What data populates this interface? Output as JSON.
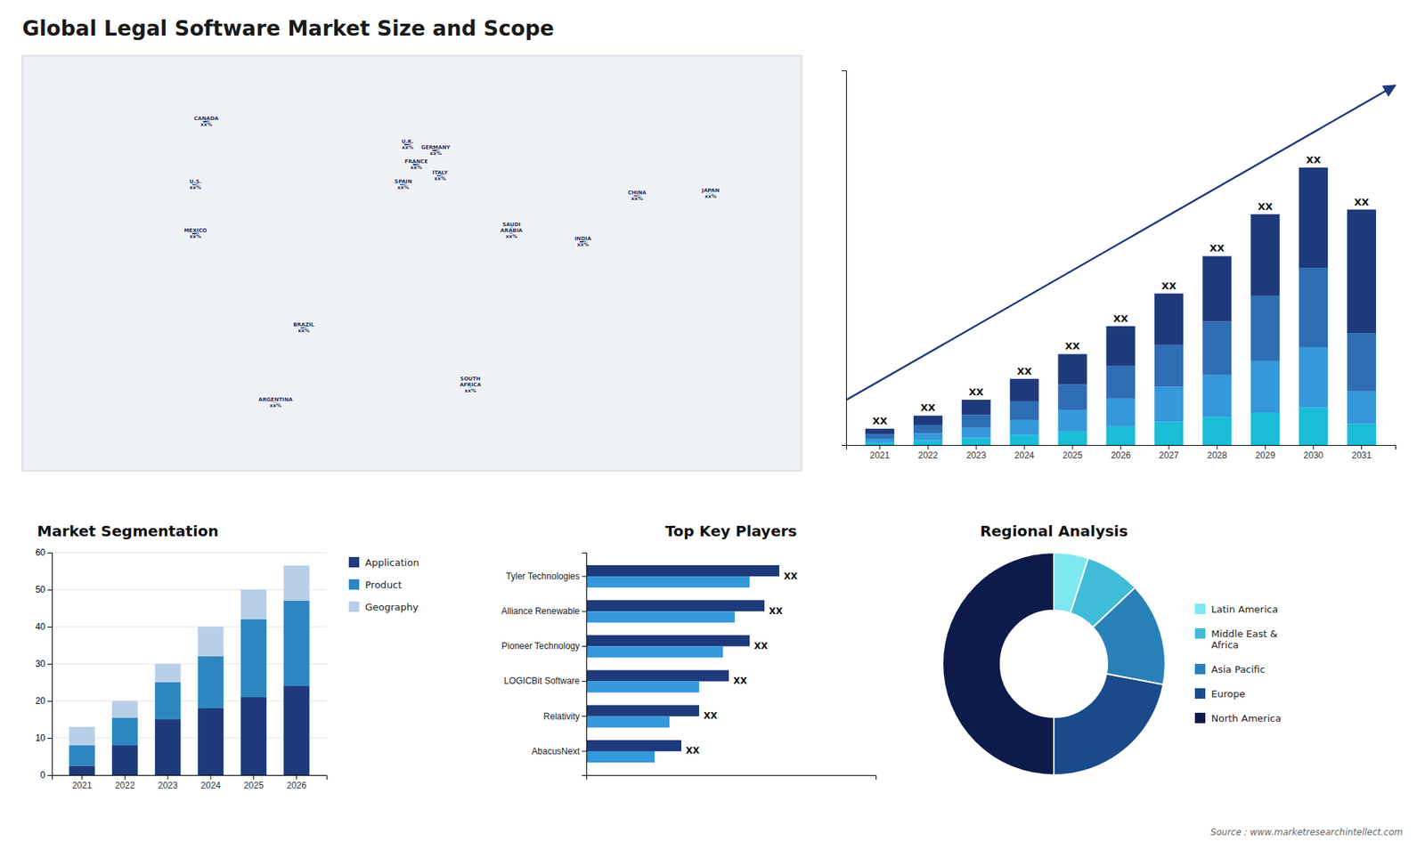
{
  "title": "Global Legal Software Market Size and Scope",
  "annotations": [
    "Source : www.marketresearchintellect.com"
  ],
  "chart_data": [
    {
      "type": "map",
      "categories": [
        "CANADA",
        "U.S.",
        "MEXICO",
        "BRAZIL",
        "ARGENTINA",
        "U.K.",
        "FRANCE",
        "SPAIN",
        "GERMANY",
        "ITALY",
        "SAUDI\nARABIA",
        "SOUTH\nAFRICA",
        "INDIA",
        "CHINA",
        "JAPAN"
      ],
      "x": [
        -95,
        -100,
        -100,
        -50,
        -63,
        -2,
        2,
        -4,
        11,
        13,
        46,
        27,
        79,
        104,
        138
      ],
      "values": [
        62,
        40,
        23,
        -10,
        -36,
        54,
        47,
        40,
        52,
        43,
        24,
        -30,
        20,
        36,
        37
      ],
      "colors": [
        "#1e3a7b",
        "#4a7abf",
        "#1e3a7b",
        "#4a7abf",
        "#b8cfe8",
        "#1e3a7b",
        "#1e3a7b",
        "#4a7abf",
        "#1e3a7b",
        "#4a7abf",
        "#4a7abf",
        "#b8cfe8",
        "#1e3a7b",
        "#4a7abf",
        "#b8cfe8"
      ],
      "annotations": [
        "xx%",
        "xx%",
        "xx%",
        "xx%",
        "xx%",
        "xx%",
        "xx%",
        "xx%",
        "xx%",
        "xx%",
        "xx%",
        "xx%",
        "xx%",
        "xx%",
        "xx%"
      ],
      "xlim": [
        -180,
        180
      ],
      "ylim": [
        -60,
        85
      ],
      "tick_labels": false,
      "grid": false
    },
    {
      "type": "bar",
      "stacked": true,
      "categories": [
        "2021",
        "2022",
        "2023",
        "2024",
        "2025",
        "2026",
        "2027",
        "2028",
        "2029",
        "2030",
        "2031"
      ],
      "series": [
        {
          "color": "#1abcd8",
          "values": [
            0.5,
            1.0,
            1.5,
            2.2,
            3.0,
            4.0,
            5.0,
            6.0,
            7.0,
            8.0,
            4.5
          ]
        },
        {
          "color": "#3498db",
          "values": [
            0.8,
            1.5,
            2.2,
            3.2,
            4.5,
            6.0,
            7.5,
            9.0,
            11.0,
            13.0,
            7.0
          ]
        },
        {
          "color": "#2e6db4",
          "values": [
            1.0,
            1.8,
            2.8,
            4.0,
            5.5,
            7.0,
            9.0,
            11.5,
            14.0,
            17.0,
            12.5
          ]
        },
        {
          "color": "#1e3a7b",
          "values": [
            1.2,
            2.0,
            3.2,
            4.8,
            6.5,
            8.5,
            11.0,
            14.0,
            17.5,
            21.5,
            26.5
          ]
        }
      ],
      "annotations": [
        "XX",
        "XX",
        "XX",
        "XX",
        "XX",
        "XX",
        "XX",
        "XX",
        "XX",
        "XX",
        "XX"
      ],
      "ylim": [
        0,
        80.325
      ],
      "tick_labels": "x",
      "grid": false
    },
    {
      "type": "bar",
      "stacked": true,
      "title": "Market Segmentation",
      "categories": [
        "2021",
        "2022",
        "2023",
        "2024",
        "2025",
        "2026"
      ],
      "series": [
        {
          "name": "Application",
          "color": "#1e3a7b",
          "values": [
            2.5,
            8.0,
            15.0,
            18.0,
            21.0,
            24.0
          ]
        },
        {
          "name": "Product",
          "color": "#2e86c1",
          "values": [
            5.5,
            7.5,
            10.0,
            14.0,
            21.0,
            23.0
          ]
        },
        {
          "name": "Geography",
          "color": "#b8cfe8",
          "values": [
            5.0,
            4.5,
            5.0,
            8.0,
            8.0,
            9.5
          ]
        }
      ],
      "ylim": [
        0,
        60
      ],
      "yticks": [
        0,
        10,
        20,
        30,
        40,
        50,
        60
      ],
      "grid": true,
      "legend": "right"
    },
    {
      "type": "bar",
      "orientation": "horizontal",
      "title": "Top Key Players",
      "categories": [
        "Tyler Technologies",
        "Alliance Renewable",
        "Pioneer Technology",
        "LOGICBit Software",
        "Relativity",
        "AbacusNext"
      ],
      "series": [
        {
          "color": "#1e3a7b",
          "values": [
            6.5,
            6.0,
            5.5,
            4.8,
            3.8,
            3.2
          ]
        },
        {
          "color": "#3498db",
          "values": [
            5.5,
            5.0,
            4.6,
            3.8,
            2.8,
            2.3
          ]
        }
      ],
      "annotations": [
        "XX",
        "XX",
        "XX",
        "XX",
        "XX",
        "XX"
      ],
      "xlim": [
        0,
        9.75
      ],
      "tick_labels": "y",
      "grid": false
    },
    {
      "type": "donut",
      "title": "Regional Analysis",
      "categories": [
        "Latin America",
        "Middle East &\nAfrica",
        "Asia Pacific",
        "Europe",
        "North America"
      ],
      "values": [
        5,
        8,
        15,
        22,
        50
      ],
      "colors": [
        "#7de8f0",
        "#40bcd8",
        "#2980b9",
        "#1a4a8a",
        "#0d1b4b"
      ],
      "legend": "right"
    }
  ]
}
